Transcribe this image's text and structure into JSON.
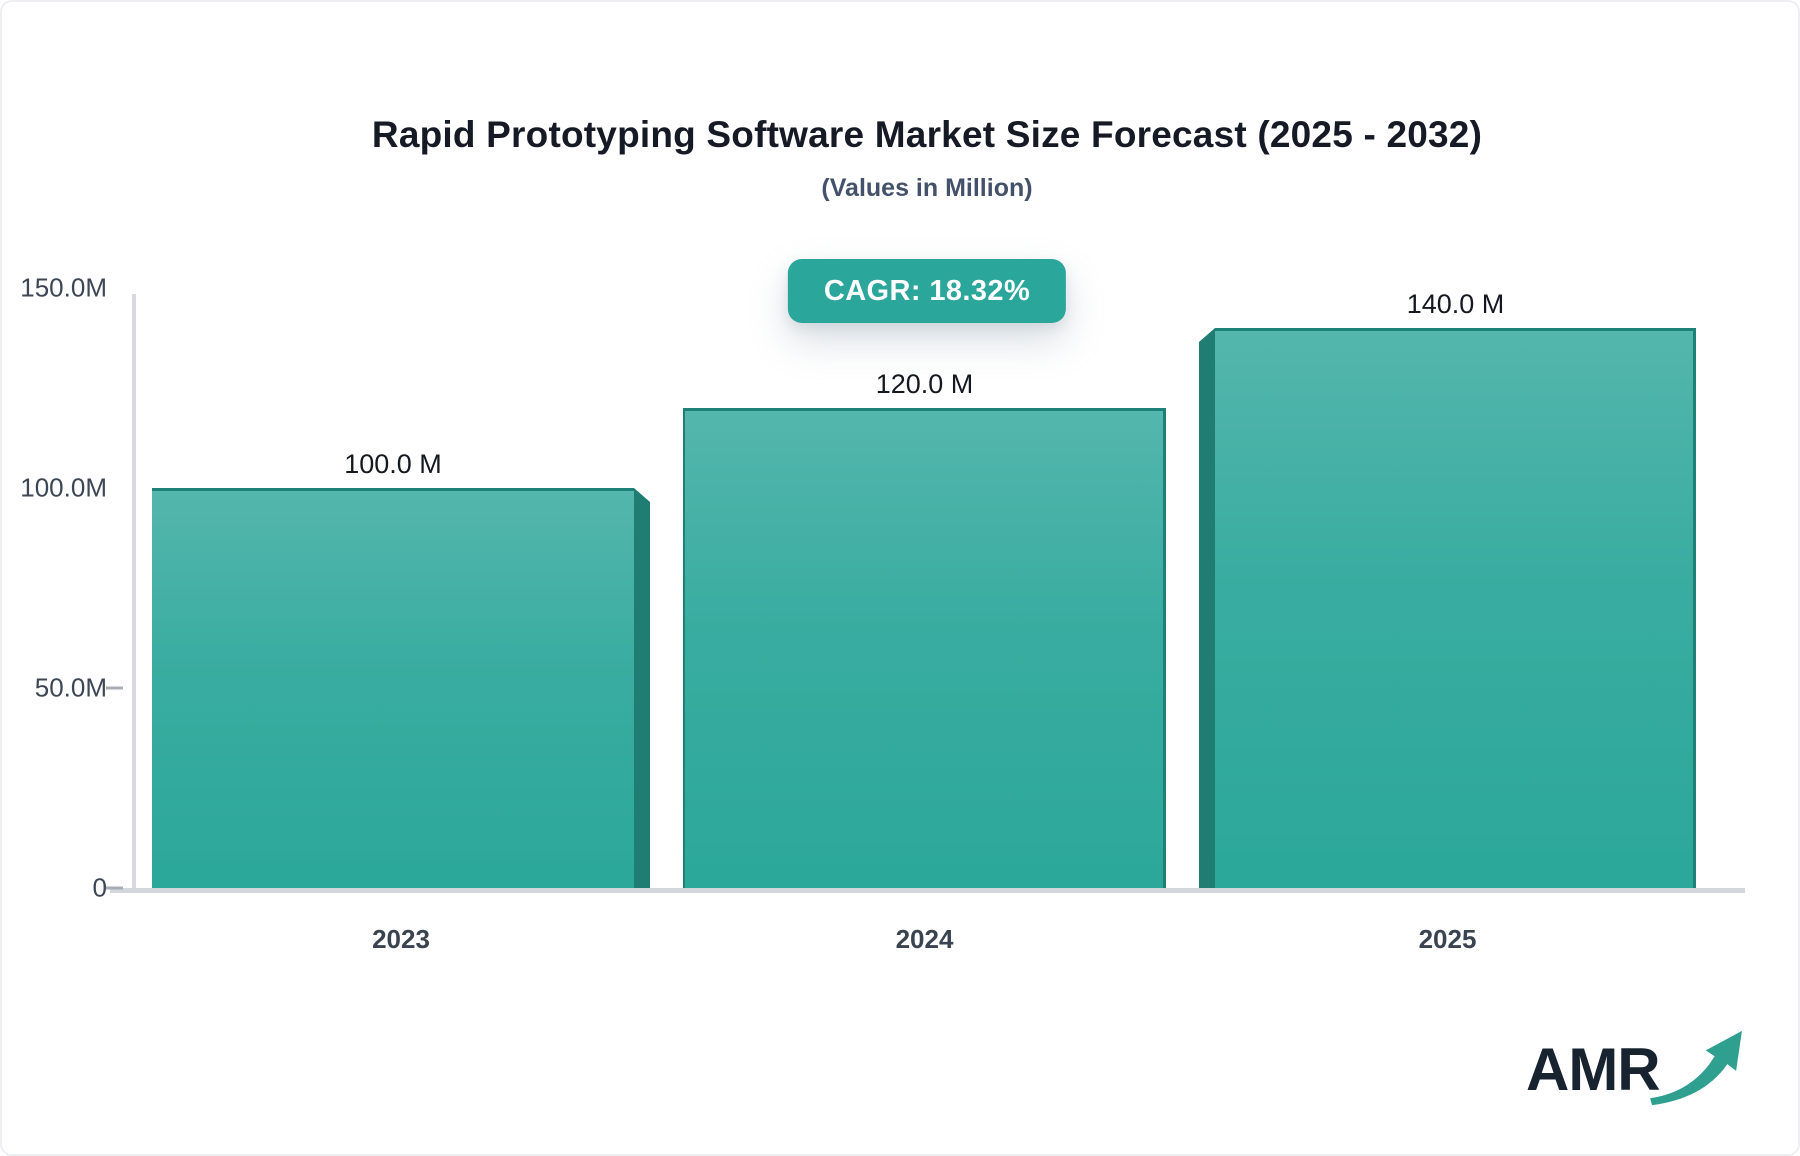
{
  "chart_data": {
    "type": "bar",
    "title": "Rapid Prototyping Software Market Size Forecast (2025 - 2032)",
    "subtitle": "(Values in Million)",
    "annotations": {
      "cagr": "CAGR: 18.32%"
    },
    "categories": [
      "2023",
      "2024",
      "2025"
    ],
    "values": [
      100.0,
      120.0,
      140.0
    ],
    "bar_labels": [
      "100.0 M",
      "120.0 M",
      "140.0 M"
    ],
    "unit": "Million",
    "ylim": [
      0,
      150
    ],
    "yticks": [
      {
        "label": "150.0M",
        "value": 150
      },
      {
        "label": "100.0M",
        "value": 100
      },
      {
        "label": "50.0M",
        "value": 50
      },
      {
        "label": "0",
        "value": 0
      }
    ],
    "grid": false,
    "legend": "none",
    "colors": {
      "bar_gradient_top": "#54b6ad",
      "bar_gradient_bottom": "#2ba89a",
      "bar_edge": "#1e8177",
      "bar_side_face": "#1f7d73",
      "badge_background": "#2ba69b",
      "badge_text": "#ffffff",
      "title_text": "#151a24",
      "subtitle_text": "#44516b",
      "axis_line": "#d6d9df"
    }
  },
  "logo": {
    "text": "AMR",
    "arrow_color": "#2f9f90"
  }
}
